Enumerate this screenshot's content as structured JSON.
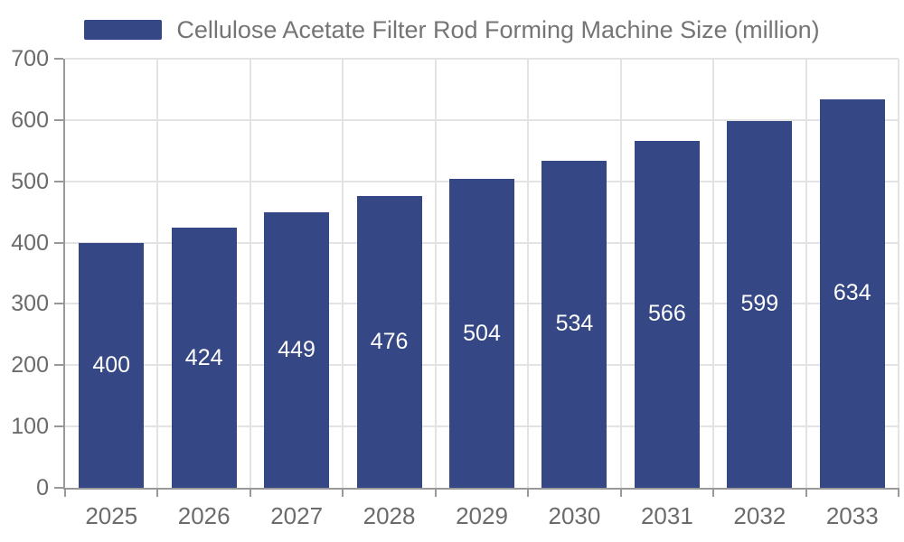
{
  "legend": {
    "label": "Cellulose Acetate Filter Rod Forming Machine Size (million)"
  },
  "chart_data": {
    "type": "bar",
    "title": "Cellulose Acetate Filter Rod Forming Machine Size (million)",
    "categories": [
      "2025",
      "2026",
      "2027",
      "2028",
      "2029",
      "2030",
      "2031",
      "2032",
      "2033"
    ],
    "values": [
      400,
      424,
      449,
      476,
      504,
      534,
      566,
      599,
      634
    ],
    "xlabel": "",
    "ylabel": "",
    "ylim": [
      0,
      700
    ],
    "yticks": [
      0,
      100,
      200,
      300,
      400,
      500,
      600,
      700
    ],
    "grid": true,
    "legend_position": "top-center",
    "bar_width_fraction": 0.7,
    "colors": {
      "bar": "#354885",
      "value_label": "#ffffff",
      "axis_line": "#999999",
      "grid_line": "#e3e3e3",
      "tick_label": "#6b6b6b",
      "legend_text": "#757575",
      "background": "#ffffff"
    }
  }
}
